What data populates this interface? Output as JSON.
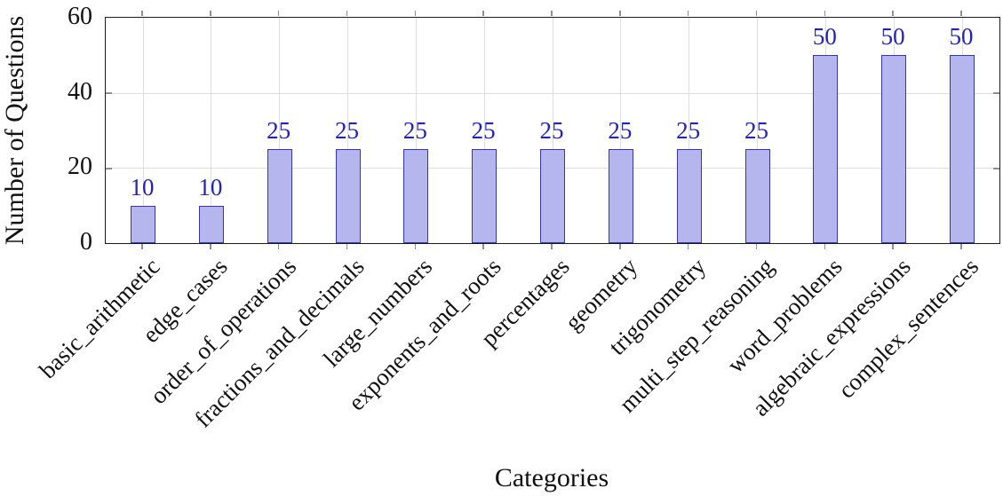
{
  "chart_data": {
    "type": "bar",
    "title": "",
    "xlabel": "Categories",
    "ylabel": "Number of Questions",
    "categories": [
      "basic_arithmetic",
      "edge_cases",
      "order_of_operations",
      "fractions_and_decimals",
      "large_numbers",
      "exponents_and_roots",
      "percentages",
      "geometry",
      "trigonometry",
      "multi_step_reasoning",
      "word_problems",
      "algebraic_expressions",
      "complex_sentences"
    ],
    "values": [
      10,
      10,
      25,
      25,
      25,
      25,
      25,
      25,
      25,
      25,
      50,
      50,
      50
    ],
    "value_labels": [
      "10",
      "10",
      "25",
      "25",
      "25",
      "25",
      "25",
      "25",
      "25",
      "25",
      "50",
      "50",
      "50"
    ],
    "ylim": [
      0,
      60
    ],
    "yticks": [
      0,
      20,
      40,
      60
    ],
    "grid": true,
    "legend": null,
    "colors": {
      "bar_fill": "#b6b6ee",
      "bar_border": "#3434b4",
      "value_label": "#2323b8",
      "axis_frame": "#1c1c1c",
      "gridline": "#dedede",
      "tick_mark": "#8f8f8f",
      "text": "#111111"
    }
  }
}
